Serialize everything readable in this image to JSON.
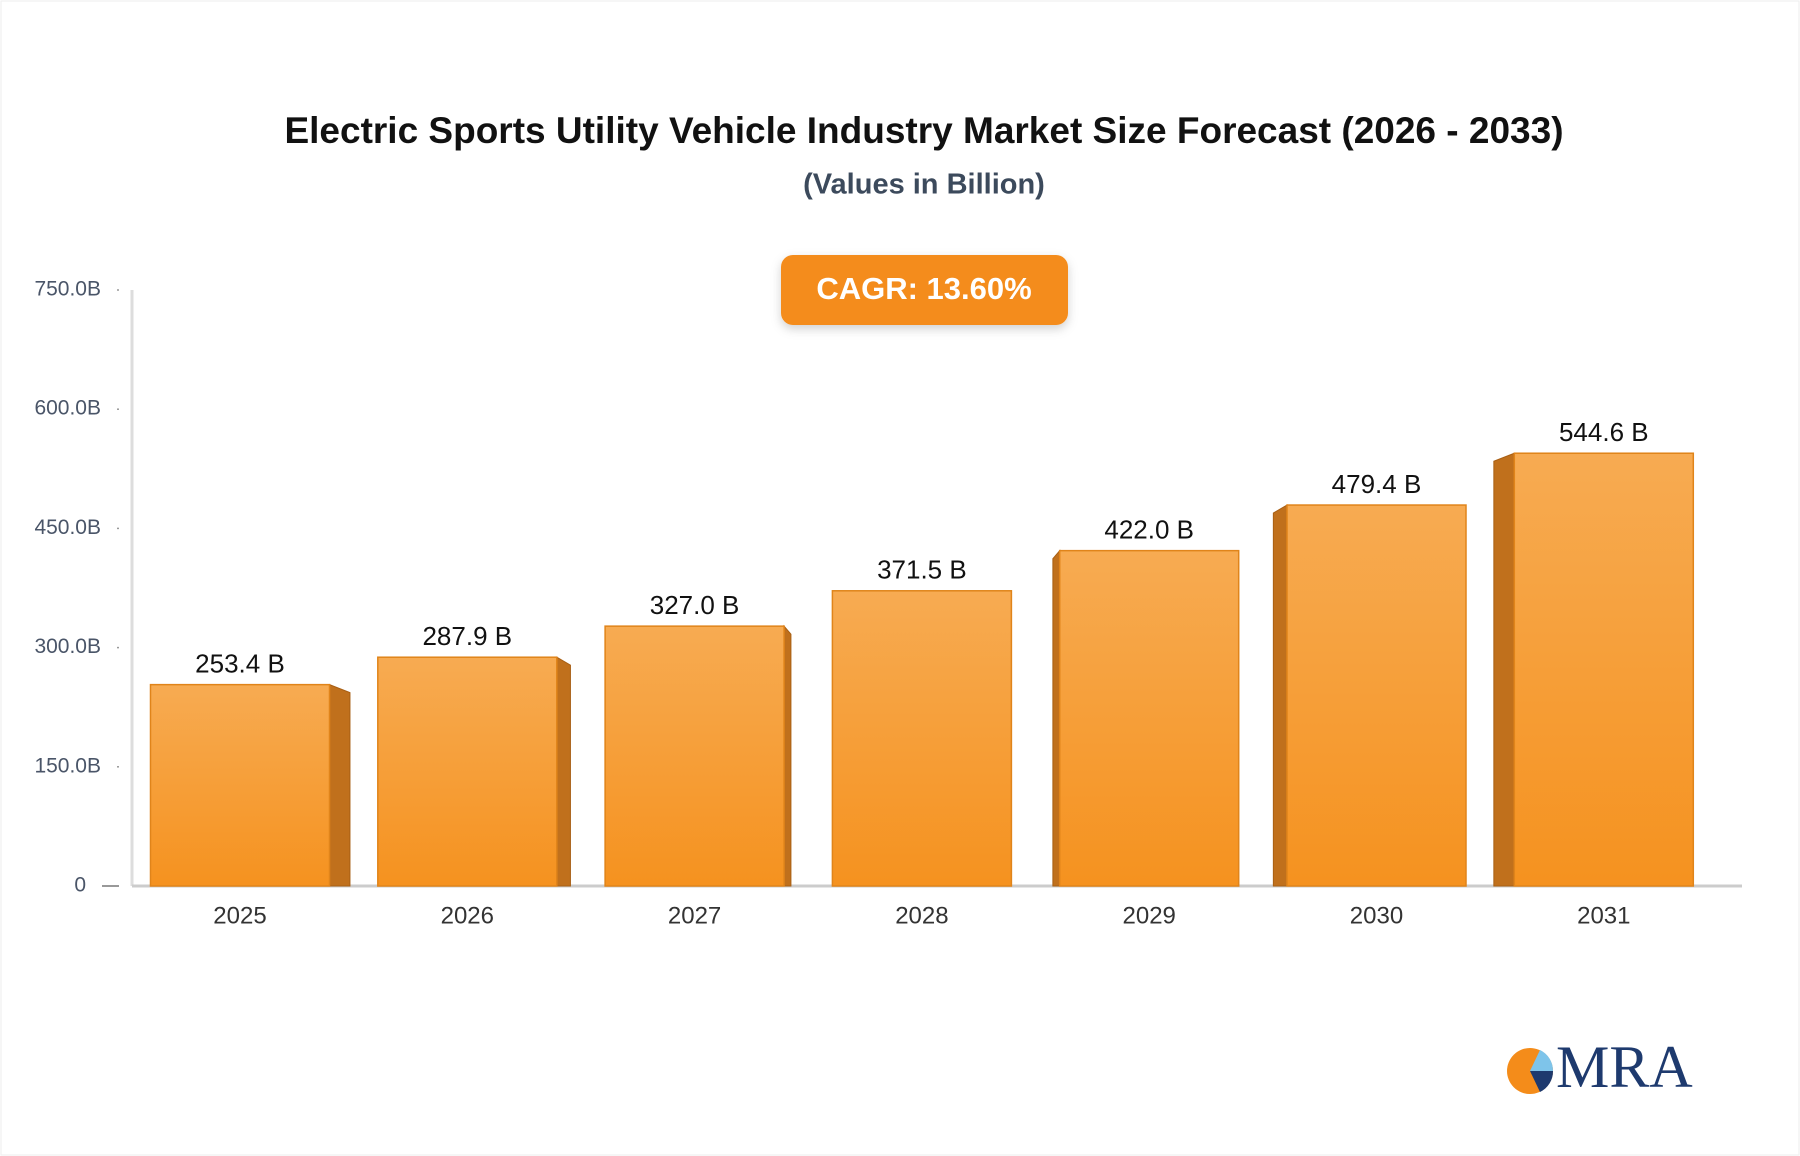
{
  "chart_data": {
    "type": "bar",
    "title": "Electric Sports Utility Vehicle Industry Market Size Forecast (2026 - 2033)",
    "subtitle": "(Values in Billion)",
    "annotation": "CAGR: 13.60%",
    "logo": "MRA",
    "categories": [
      "2025",
      "2026",
      "2027",
      "2028",
      "2029",
      "2030",
      "2031"
    ],
    "values": [
      253.4,
      287.9,
      327.0,
      371.5,
      422.0,
      479.4,
      544.6
    ],
    "value_labels": [
      "253.4 B",
      "287.9 B",
      "327.0 B",
      "371.5 B",
      "422.0 B",
      "479.4 B",
      "544.6 B"
    ],
    "color": "#f5a040",
    "ylim": [
      0,
      750
    ],
    "yticks": [
      0,
      {
        "value": 150,
        "label": "150.0B"
      },
      {
        "value": 300,
        "label": "300.0B"
      },
      {
        "value": 450,
        "label": "450.0B"
      },
      {
        "value": 600,
        "label": "600.0B"
      },
      {
        "value": 750,
        "label": "750.0B"
      }
    ],
    "grid": false
  }
}
